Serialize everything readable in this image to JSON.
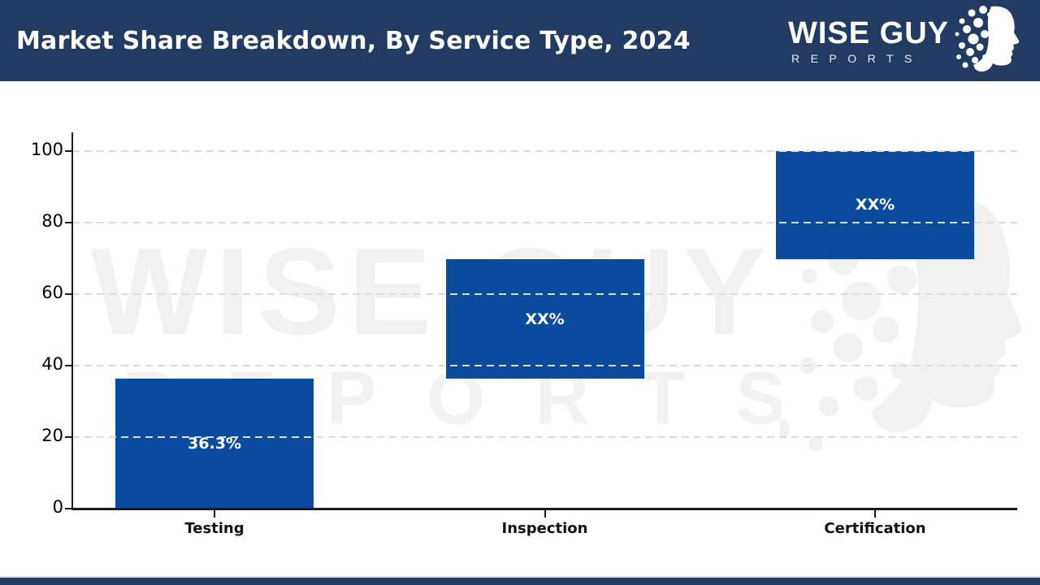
{
  "header": {
    "title": "Market Share Breakdown, By Service Type, 2024",
    "logo": {
      "line1": "WISE GUY",
      "line2": "REPORTS"
    }
  },
  "watermark": {
    "line1": "WISE GUY",
    "line2": "REPORTS"
  },
  "chart_data": {
    "type": "bar",
    "subtype": "floating-segment (waterfall-style market share breakdown)",
    "title": "Market Share Breakdown, By Service Type, 2024",
    "categories": [
      "Testing",
      "Inspection",
      "Certification"
    ],
    "segments": [
      {
        "category": "Testing",
        "start": 0,
        "end": 36.3,
        "label": "36.3%"
      },
      {
        "category": "Inspection",
        "start": 36.3,
        "end": 69.8,
        "label": "XX%"
      },
      {
        "category": "Certification",
        "start": 69.8,
        "end": 100,
        "label": "XX%"
      }
    ],
    "xlabel": "",
    "ylabel": "",
    "yticks": [
      0,
      20,
      40,
      60,
      80,
      100
    ],
    "ylim": [
      0,
      105
    ],
    "grid": "horizontal dashed gridlines at each ytick, drawn over bars",
    "legend": "none",
    "bar_color": "#0a4b9e",
    "bar_label_color": "#ffffff"
  },
  "colors": {
    "header_bg": "#233a63",
    "footer_bg": "#233a63",
    "axis": "#1a1a1a",
    "grid": "#dcdcdc",
    "watermark": "#f1f1f1",
    "bar": "#0a4b9e"
  }
}
